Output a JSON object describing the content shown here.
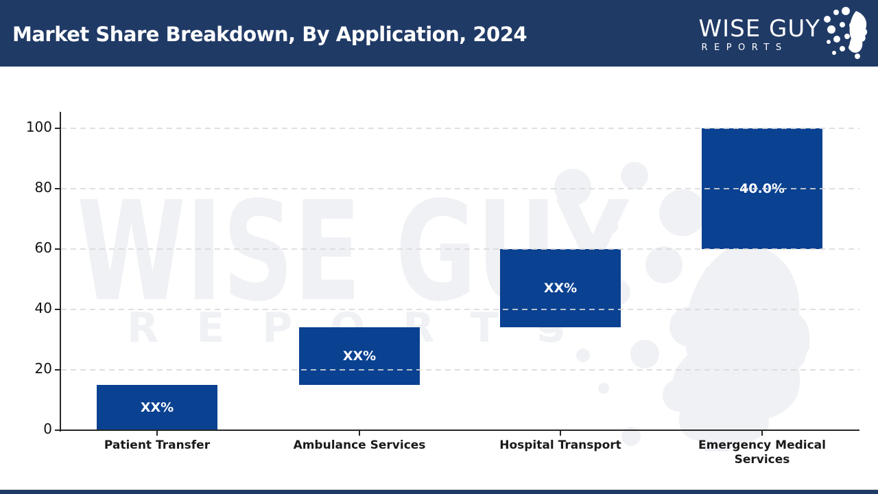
{
  "header": {
    "title": "Market Share Breakdown, By Application, 2024",
    "logo": {
      "line1": "WISE GUY",
      "line2": "REPORTS"
    }
  },
  "watermark": {
    "line1": "WISE GUY",
    "line2": "REPORTS"
  },
  "chart_data": {
    "type": "bar",
    "subtype": "waterfall",
    "title": "Market Share Breakdown, By Application, 2024",
    "categories": [
      "Patient Transfer",
      "Ambulance Services",
      "Hospital Transport",
      "Emergency Medical Services"
    ],
    "series": [
      {
        "name": "Market Share",
        "segments": [
          {
            "category": "Patient Transfer",
            "start": 0,
            "end": 15,
            "size": 15,
            "label": "XX%"
          },
          {
            "category": "Ambulance Services",
            "start": 15,
            "end": 34,
            "size": 19,
            "label": "XX%"
          },
          {
            "category": "Hospital Transport",
            "start": 34,
            "end": 60,
            "size": 26,
            "label": "XX%"
          },
          {
            "category": "Emergency Medical Services",
            "start": 60,
            "end": 100,
            "size": 40,
            "label": "40.0%"
          }
        ]
      }
    ],
    "xlabel": "",
    "ylabel": "",
    "ylim": [
      0,
      100
    ],
    "yticks": [
      0,
      20,
      40,
      60,
      80,
      100
    ],
    "grid": "horizontal-dashed, drawn over bars",
    "legend": "none",
    "colors": {
      "bar": "#0a4191",
      "bar_label": "#ffffff",
      "header_bg": "#203a66",
      "axis": "#262626",
      "gridline": "#d9d9d9",
      "watermark": "#f0f1f4"
    }
  }
}
